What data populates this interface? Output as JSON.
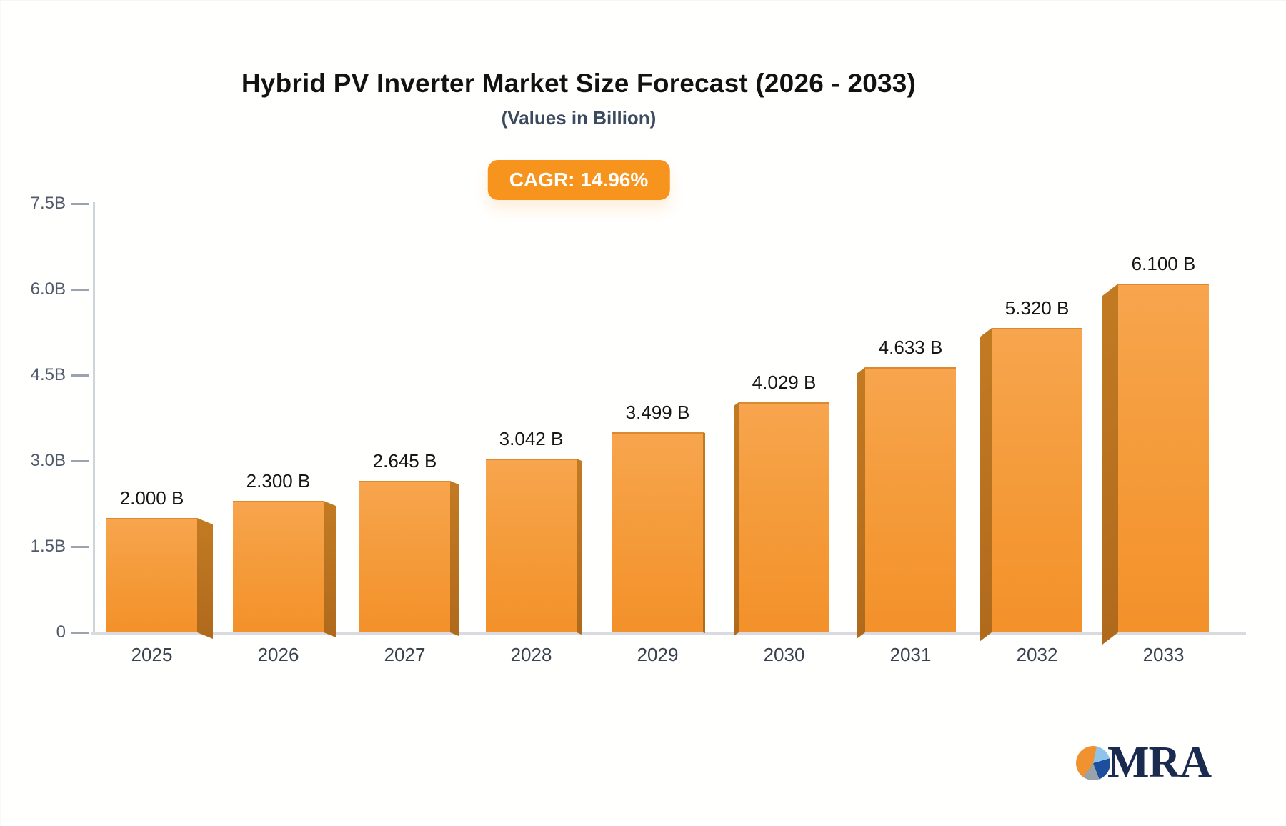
{
  "title": "Hybrid PV Inverter Market Size Forecast (2026 - 2033)",
  "subtitle": "(Values in Billion)",
  "badge": {
    "label": "CAGR: 14.96%"
  },
  "colors": {
    "badge_bg": "#f7941e",
    "bar_front_top": "#f7a54e",
    "bar_front_bottom": "#f3912a",
    "bar_side": "#b9711f",
    "axis_line": "#cfd3da",
    "tick_label": "#515b6b",
    "value_label": "#151515",
    "category_label": "#39414f"
  },
  "chart_data": {
    "type": "bar",
    "style": "3d-perspective",
    "title": "Hybrid PV Inverter Market Size Forecast (2026 - 2033)",
    "subtitle": "(Values in Billion)",
    "annotation": "CAGR: 14.96%",
    "categories": [
      "2025",
      "2026",
      "2027",
      "2028",
      "2029",
      "2030",
      "2031",
      "2032",
      "2033"
    ],
    "values": [
      2.0,
      2.3,
      2.645,
      3.042,
      3.499,
      4.029,
      4.633,
      5.32,
      6.1
    ],
    "value_labels": [
      "2.000 B",
      "2.300 B",
      "2.645 B",
      "3.042 B",
      "3.499 B",
      "4.029 B",
      "4.633 B",
      "5.320 B",
      "6.100 B"
    ],
    "xlabel": "",
    "ylabel": "",
    "ylim": [
      0,
      7.5
    ],
    "ytick_interval": 1.5,
    "yticks": [
      {
        "value": 7.5,
        "label": "7.5B"
      },
      {
        "value": 6.0,
        "label": "6.0B"
      },
      {
        "value": 4.5,
        "label": "4.5B"
      },
      {
        "value": 3.0,
        "label": "3.0B"
      },
      {
        "value": 1.5,
        "label": "1.5B"
      },
      {
        "value": 0,
        "label": "0"
      }
    ],
    "grid": false,
    "legend": "none"
  },
  "logo": {
    "text": "MRA",
    "pie_icon": "pie-chart-icon"
  }
}
